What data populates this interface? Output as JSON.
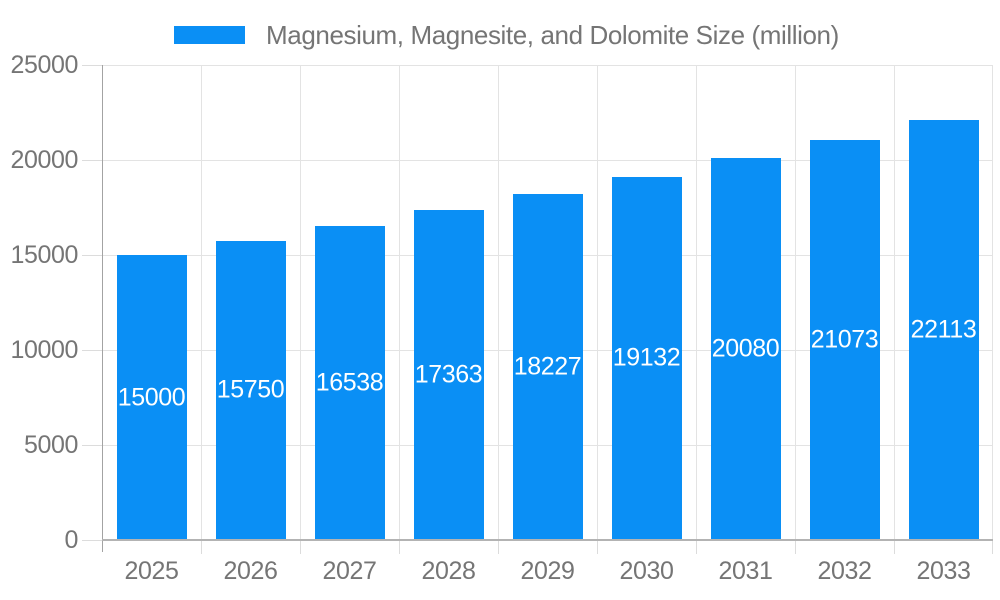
{
  "legend": {
    "label": "Magnesium, Magnesite, and Dolomite Size (million)"
  },
  "chart_data": {
    "type": "bar",
    "title": "Magnesium, Magnesite, and Dolomite Size (million)",
    "categories": [
      "2025",
      "2026",
      "2027",
      "2028",
      "2029",
      "2030",
      "2031",
      "2032",
      "2033"
    ],
    "values": [
      15000,
      15750,
      16538,
      17363,
      18227,
      19132,
      20080,
      21073,
      22113
    ],
    "xlabel": "",
    "ylabel": "",
    "ylim": [
      0,
      25000
    ],
    "yticks": [
      0,
      5000,
      10000,
      15000,
      20000,
      25000
    ],
    "grid": true,
    "legend_position": "top",
    "value_labels": "inside-center",
    "colors": {
      "bar": "#0a8ff5",
      "grid": "#e3e3e3",
      "tick": "#dcdcdc",
      "axis": "#a3a3a3",
      "baseline": "#b3b3b3",
      "text": "#757575",
      "value_label": "#ffffff",
      "background": "#ffffff"
    }
  }
}
